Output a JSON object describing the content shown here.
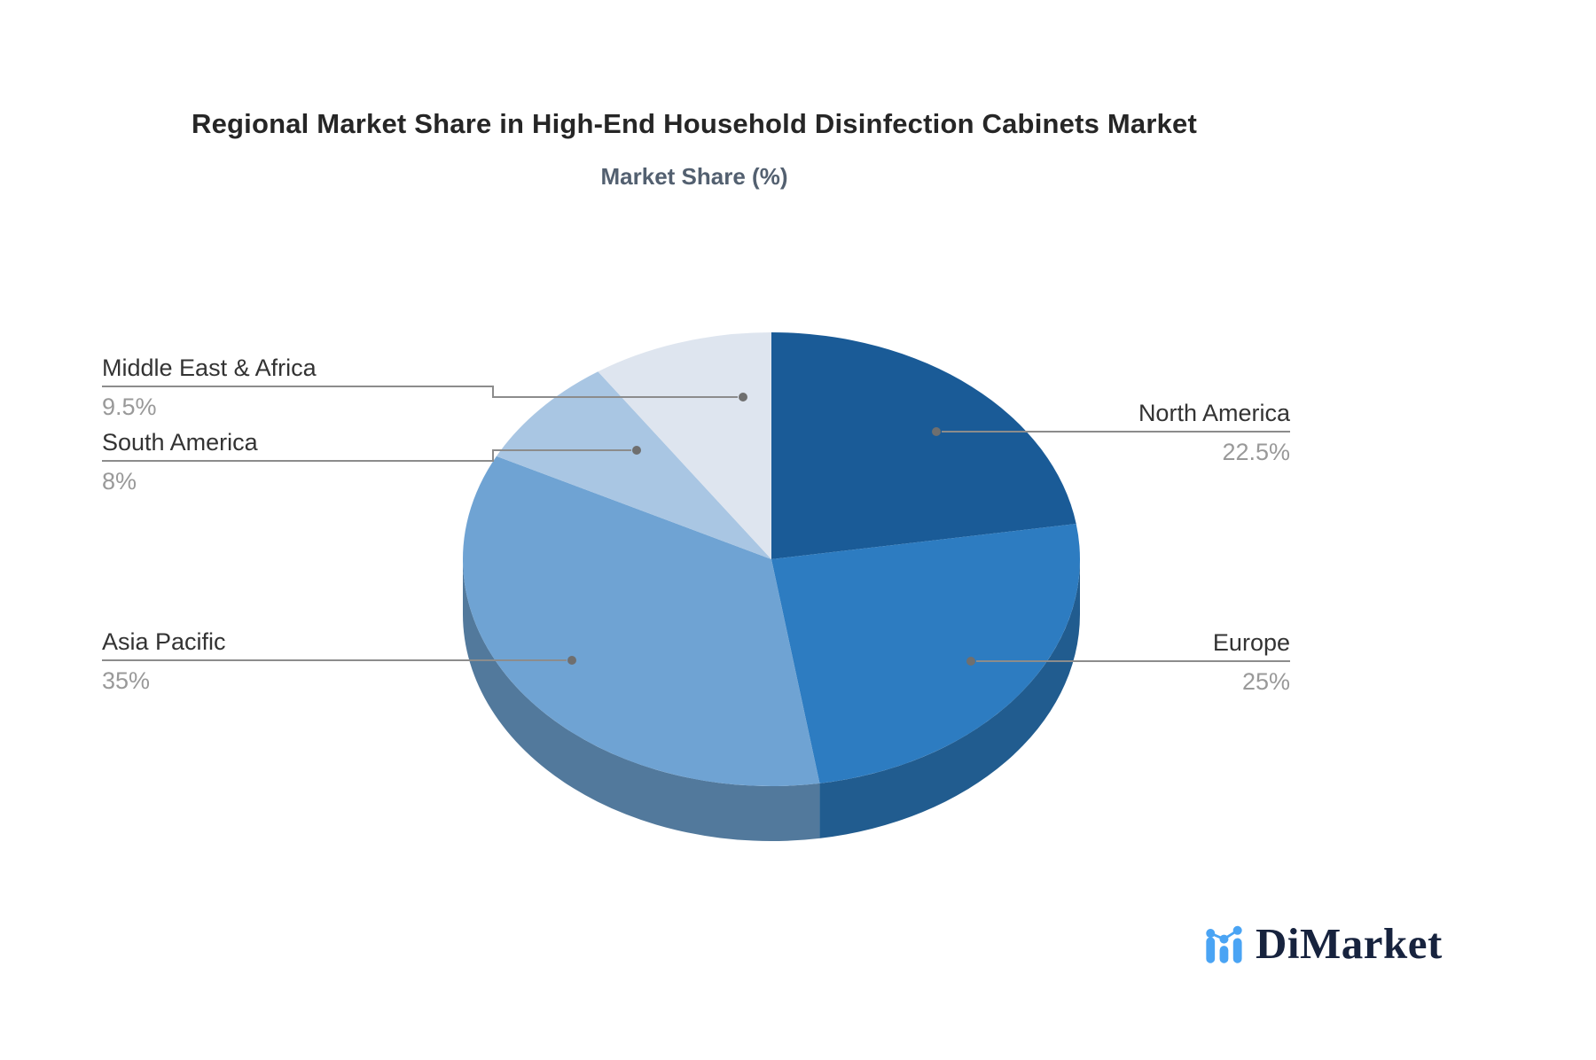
{
  "title": "Regional Market Share in High-End Household Disinfection Cabinets Market",
  "subtitle": "Market Share (%)",
  "chart_data": {
    "type": "pie",
    "title": "Regional Market Share in High-End Household Disinfection Cabinets Market",
    "subtitle": "Market Share (%)",
    "unit": "%",
    "style": "3d-pie",
    "start_angle": "12-o'clock, clockwise",
    "legend_position": "none (callout labels)",
    "label_line_color": "#8c8c8c",
    "slices": [
      {
        "label": "North America",
        "value": 22.5,
        "display": "22.5%",
        "color": "#1a5b97",
        "side": "right"
      },
      {
        "label": "Europe",
        "value": 25,
        "display": "25%",
        "color": "#2d7cc1",
        "side": "right"
      },
      {
        "label": "Asia Pacific",
        "value": 35,
        "display": "35%",
        "color": "#6fa3d3",
        "side": "left"
      },
      {
        "label": "South America",
        "value": 8,
        "display": "8%",
        "color": "#a9c6e3",
        "side": "left"
      },
      {
        "label": "Middle East & Africa",
        "value": 9.5,
        "display": "9.5%",
        "color": "#dee5ef",
        "side": "left"
      }
    ]
  },
  "logo": {
    "text": "DiMarket",
    "icon": "bar-line-chart-icon",
    "icon_color": "#4aa4f4",
    "text_color": "#17233e"
  }
}
